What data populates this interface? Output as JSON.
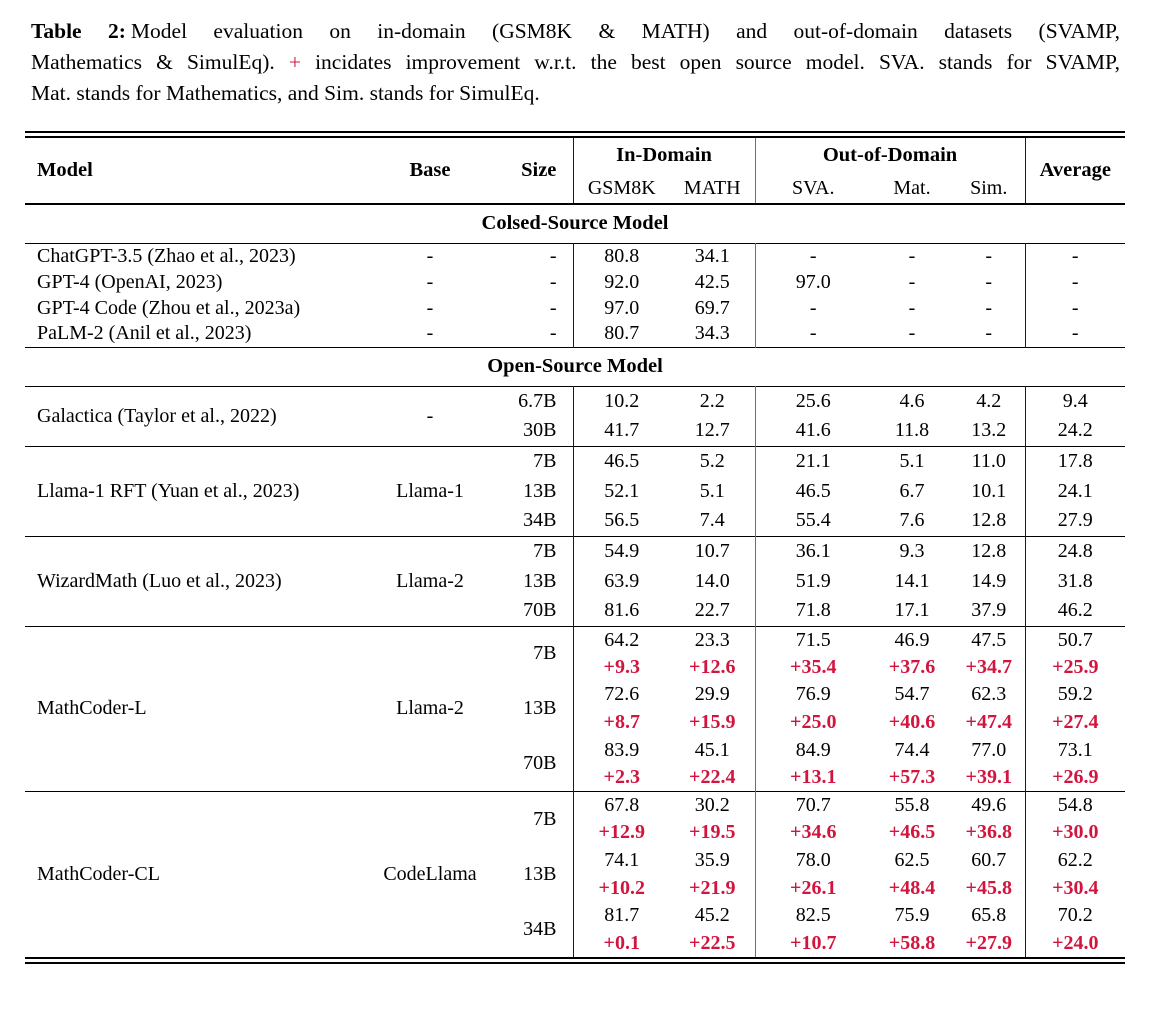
{
  "colors": {
    "delta_red": "#d2153f",
    "text": "#000000",
    "rule": "#000000",
    "mid_rule_gray": "#6e6e6e"
  },
  "caption": {
    "lines": [
      [
        {
          "text": "Table 2:",
          "bold": true
        },
        {
          "text": "Model evaluation on in-domain (GSM8K & MATH) and out-of-domain datasets (SVAMP,"
        }
      ],
      [
        {
          "text": "Mathematics & SimulEq). "
        },
        {
          "text": "+",
          "red": true
        },
        {
          "text": " incidates improvement w.r.t. the best open source model. SVA. stands for SVAMP,"
        }
      ],
      [
        {
          "text": "Mat. stands for Mathematics, and Sim. stands for SimulEq."
        }
      ]
    ]
  },
  "table": {
    "headers": {
      "model": "Model",
      "base": "Base",
      "size": "Size",
      "in_domain": "In-Domain",
      "out_of_domain": "Out-of-Domain",
      "average": "Average",
      "gsm8k": "GSM8K",
      "math": "MATH",
      "sva": "SVA.",
      "mat": "Mat.",
      "sim": "Sim."
    },
    "columns": [
      "GSM8K",
      "MATH",
      "SVA.",
      "Mat.",
      "Sim.",
      "Average"
    ],
    "sections": [
      {
        "title": "Colsed-Source Model",
        "groups": [
          {
            "model": "ChatGPT-3.5 (Zhao et al., 2023)",
            "base": "-",
            "rule_after": false,
            "entries": [
              {
                "size": "-",
                "values": [
                  "80.8",
                  "34.1",
                  "-",
                  "-",
                  "-",
                  "-"
                ]
              }
            ]
          },
          {
            "model": "GPT-4 (OpenAI, 2023)",
            "base": "-",
            "rule_after": false,
            "entries": [
              {
                "size": "-",
                "values": [
                  "92.0",
                  "42.5",
                  "97.0",
                  "-",
                  "-",
                  "-"
                ]
              }
            ]
          },
          {
            "model": "GPT-4 Code (Zhou et al., 2023a)",
            "base": "-",
            "rule_after": false,
            "entries": [
              {
                "size": "-",
                "values": [
                  "97.0",
                  "69.7",
                  "-",
                  "-",
                  "-",
                  "-"
                ]
              }
            ]
          },
          {
            "model": "PaLM-2 (Anil et al., 2023)",
            "base": "-",
            "rule_after": true,
            "entries": [
              {
                "size": "-",
                "values": [
                  "80.7",
                  "34.3",
                  "-",
                  "-",
                  "-",
                  "-"
                ]
              }
            ]
          }
        ]
      },
      {
        "title": "Open-Source Model",
        "groups": [
          {
            "model": "Galactica (Taylor et al., 2022)",
            "base": "-",
            "rule_after": true,
            "entries": [
              {
                "size": "6.7B",
                "values": [
                  "10.2",
                  "2.2",
                  "25.6",
                  "4.6",
                  "4.2",
                  "9.4"
                ]
              },
              {
                "size": "30B",
                "values": [
                  "41.7",
                  "12.7",
                  "41.6",
                  "11.8",
                  "13.2",
                  "24.2"
                ]
              }
            ]
          },
          {
            "model": "Llama-1 RFT (Yuan et al., 2023)",
            "base": "Llama-1",
            "rule_after": true,
            "entries": [
              {
                "size": "7B",
                "values": [
                  "46.5",
                  "5.2",
                  "21.1",
                  "5.1",
                  "11.0",
                  "17.8"
                ]
              },
              {
                "size": "13B",
                "values": [
                  "52.1",
                  "5.1",
                  "46.5",
                  "6.7",
                  "10.1",
                  "24.1"
                ]
              },
              {
                "size": "34B",
                "values": [
                  "56.5",
                  "7.4",
                  "55.4",
                  "7.6",
                  "12.8",
                  "27.9"
                ]
              }
            ]
          },
          {
            "model": "WizardMath (Luo et al., 2023)",
            "base": "Llama-2",
            "rule_after": true,
            "entries": [
              {
                "size": "7B",
                "values": [
                  "54.9",
                  "10.7",
                  "36.1",
                  "9.3",
                  "12.8",
                  "24.8"
                ]
              },
              {
                "size": "13B",
                "values": [
                  "63.9",
                  "14.0",
                  "51.9",
                  "14.1",
                  "14.9",
                  "31.8"
                ]
              },
              {
                "size": "70B",
                "values": [
                  "81.6",
                  "22.7",
                  "71.8",
                  "17.1",
                  "37.9",
                  "46.2"
                ]
              }
            ]
          },
          {
            "model": "MathCoder-L",
            "base": "Llama-2",
            "rule_after": true,
            "entries": [
              {
                "size": "7B",
                "values": [
                  "64.2",
                  "23.3",
                  "71.5",
                  "46.9",
                  "47.5",
                  "50.7"
                ],
                "deltas": [
                  "+9.3",
                  "+12.6",
                  "+35.4",
                  "+37.6",
                  "+34.7",
                  "+25.9"
                ]
              },
              {
                "size": "13B",
                "values": [
                  "72.6",
                  "29.9",
                  "76.9",
                  "54.7",
                  "62.3",
                  "59.2"
                ],
                "deltas": [
                  "+8.7",
                  "+15.9",
                  "+25.0",
                  "+40.6",
                  "+47.4",
                  "+27.4"
                ]
              },
              {
                "size": "70B",
                "values": [
                  "83.9",
                  "45.1",
                  "84.9",
                  "74.4",
                  "77.0",
                  "73.1"
                ],
                "deltas": [
                  "+2.3",
                  "+22.4",
                  "+13.1",
                  "+57.3",
                  "+39.1",
                  "+26.9"
                ]
              }
            ]
          },
          {
            "model": "MathCoder-CL",
            "base": "CodeLlama",
            "rule_after": false,
            "entries": [
              {
                "size": "7B",
                "values": [
                  "67.8",
                  "30.2",
                  "70.7",
                  "55.8",
                  "49.6",
                  "54.8"
                ],
                "deltas": [
                  "+12.9",
                  "+19.5",
                  "+34.6",
                  "+46.5",
                  "+36.8",
                  "+30.0"
                ]
              },
              {
                "size": "13B",
                "values": [
                  "74.1",
                  "35.9",
                  "78.0",
                  "62.5",
                  "60.7",
                  "62.2"
                ],
                "deltas": [
                  "+10.2",
                  "+21.9",
                  "+26.1",
                  "+48.4",
                  "+45.8",
                  "+30.4"
                ]
              },
              {
                "size": "34B",
                "values": [
                  "81.7",
                  "45.2",
                  "82.5",
                  "75.9",
                  "65.8",
                  "70.2"
                ],
                "deltas": [
                  "+0.1",
                  "+22.5",
                  "+10.7",
                  "+58.8",
                  "+27.9",
                  "+24.0"
                ]
              }
            ]
          }
        ]
      }
    ]
  }
}
